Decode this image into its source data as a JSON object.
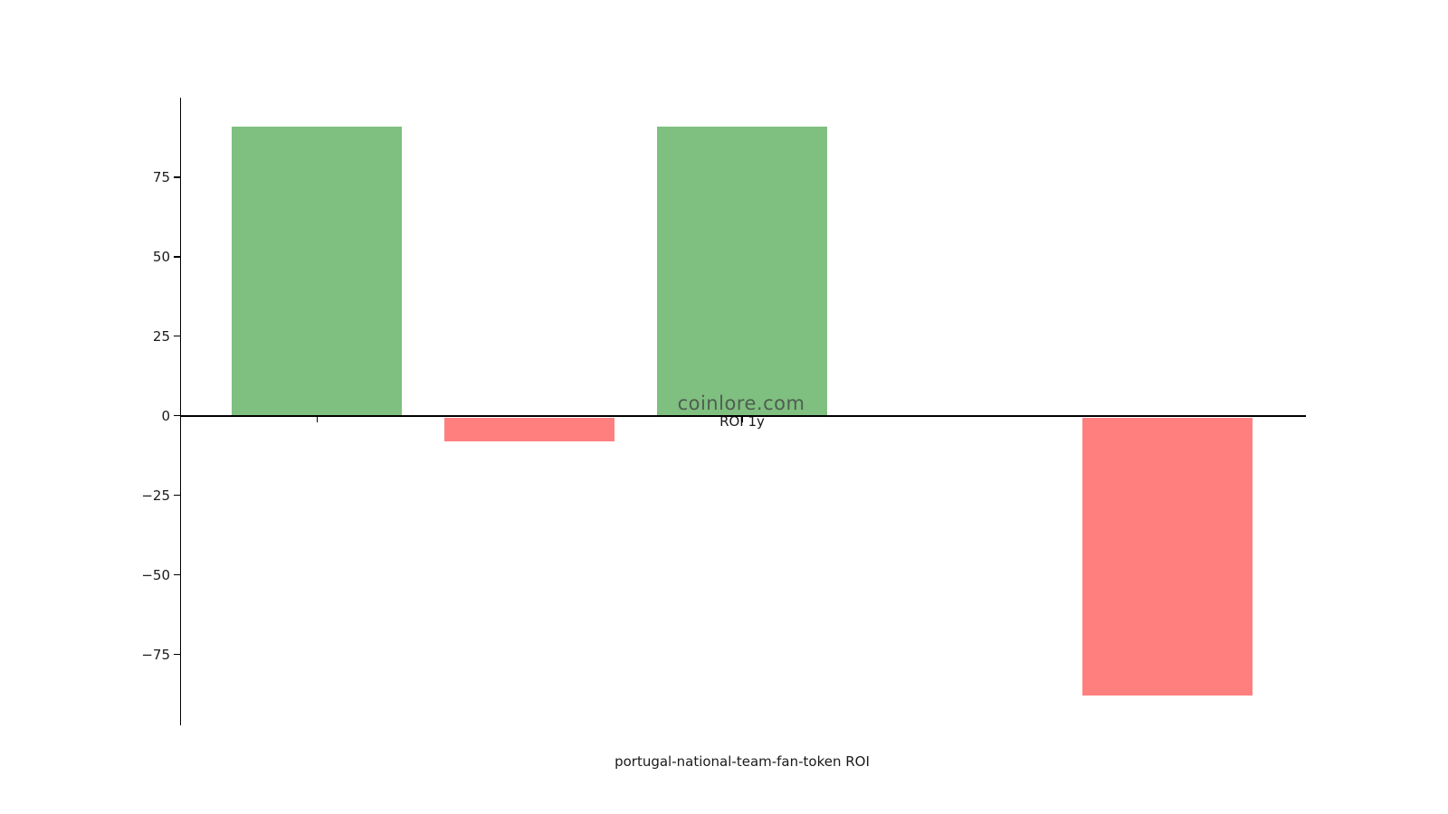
{
  "chart_data": {
    "type": "bar",
    "title": "portugal-national-team-fan-token ROI",
    "watermark": "coinlore.com",
    "categories": [
      "",
      "",
      "ROI 1y",
      "",
      ""
    ],
    "values": [
      91,
      -8,
      91,
      null,
      -88
    ],
    "xticks": [
      {
        "slot": 0,
        "label": ""
      },
      {
        "slot": 2,
        "label": "ROI 1y"
      }
    ],
    "yticks": [
      75,
      50,
      25,
      0,
      -25,
      -50,
      -75
    ],
    "ylim": [
      -97,
      100
    ],
    "xlim": [
      -0.64,
      4.64
    ],
    "bar_width": 0.8,
    "bar_color_positive": "#7fbf7f",
    "bar_color_negative": "#ff7f7f",
    "axis_color": "#000000",
    "text_color": "#1a1a1a",
    "watermark_color": "#49544c",
    "grid": false,
    "legend": false
  }
}
